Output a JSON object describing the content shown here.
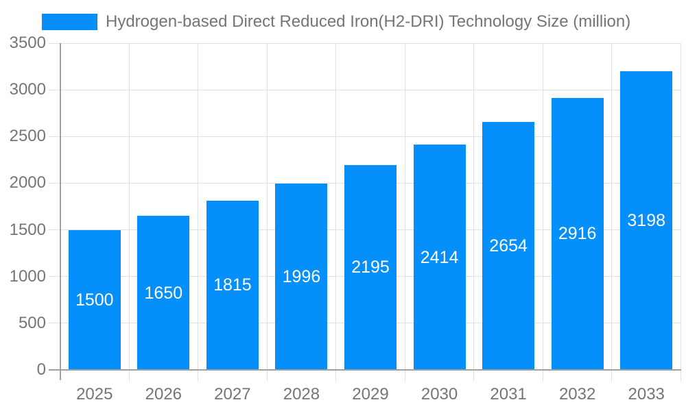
{
  "colors": {
    "bar": "#058ffb",
    "grid": "#e0e0e0",
    "axis": "#a0a0a0",
    "label_text": "#757575",
    "value_text": "#ffffff",
    "background": "#ffffff"
  },
  "chart_data": {
    "type": "bar",
    "title": "Hydrogen-based Direct Reduced Iron(H2-DRI) Technology Size (million)",
    "categories": [
      "2025",
      "2026",
      "2027",
      "2028",
      "2029",
      "2030",
      "2031",
      "2032",
      "2033"
    ],
    "series": [
      {
        "name": "Hydrogen-based Direct Reduced Iron(H2-DRI) Technology Size (million)",
        "values": [
          1500,
          1650,
          1815,
          1996,
          2195,
          2414,
          2654,
          2916,
          3198
        ]
      }
    ],
    "xlabel": "",
    "ylabel": "",
    "ylim": [
      0,
      3500
    ],
    "yticks": [
      0,
      500,
      1000,
      1500,
      2000,
      2500,
      3000,
      3500
    ],
    "grid": true,
    "legend_position": "top",
    "value_label_position": "middle"
  }
}
